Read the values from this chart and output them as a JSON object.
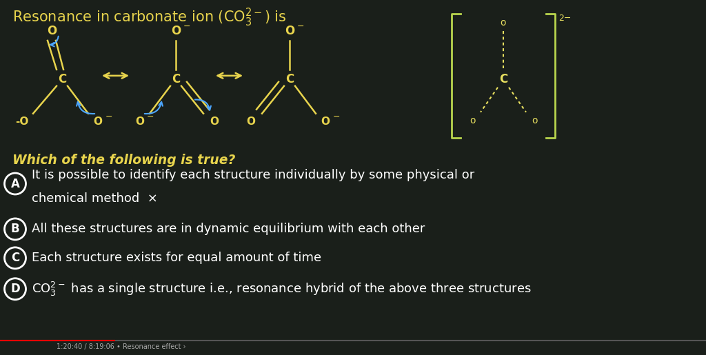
{
  "background_color": "#1a1f1a",
  "title_color": "#e8d44d",
  "title_fontsize": 15,
  "question": "Which of the following is true?",
  "question_color": "#e8d44d",
  "question_fontsize": 13.5,
  "options": [
    {
      "label": "A",
      "text1": "It is possible to identify each structure individually by some physical or",
      "text2": "chemical method  ×"
    },
    {
      "label": "B",
      "text1": "All these structures are in dynamic equilibrium with each other",
      "text2": ""
    },
    {
      "label": "C",
      "text1": "Each structure exists for equal amount of time",
      "text2": ""
    },
    {
      "label": "D",
      "text1": "CO₃²⁻ has a single structure i.e., resonance hybrid of the above three structures",
      "text2": ""
    }
  ],
  "option_color": "#ffffff",
  "option_fontsize": 13,
  "structure_color": "#e8d44d",
  "arrow_color": "#e8d44d",
  "curve_arrow_color": "#4da6ff",
  "hybrid_bracket_color": "#b8d44d",
  "hybrid_structure_color": "#e8e060",
  "progress_bar_color": "#ff0000",
  "timestamp": "1:20:40 / 8:19:06 • Resonance effect ›"
}
